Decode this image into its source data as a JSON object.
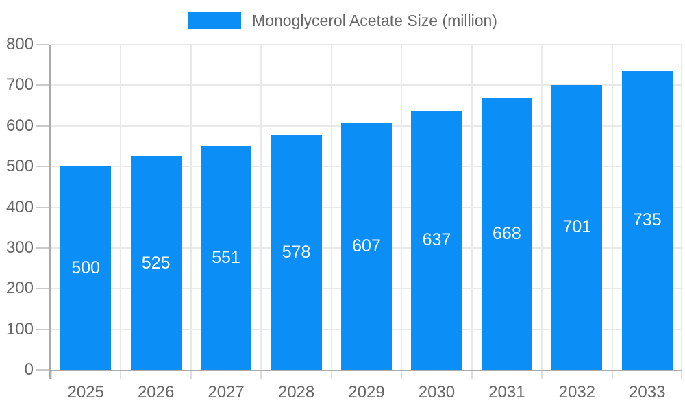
{
  "legend": {
    "label": "Monoglycerol Acetate Size (million)"
  },
  "colors": {
    "bar": "#0b8ef6",
    "bar_label": "#ffffff",
    "axis_label": "#666666",
    "legend_label": "#666666",
    "grid": "#e9e9e9",
    "axis_line": "#ababab",
    "tick": "#c9c9c9",
    "x_tick": "#dedede",
    "background": "#ffffff"
  },
  "chart_data": {
    "type": "bar",
    "title": "Monoglycerol Acetate Size (million)",
    "categories": [
      "2025",
      "2026",
      "2027",
      "2028",
      "2029",
      "2030",
      "2031",
      "2032",
      "2033"
    ],
    "values": [
      500,
      525,
      551,
      578,
      607,
      637,
      668,
      701,
      735
    ],
    "xlabel": "",
    "ylabel": "",
    "ylim": [
      0,
      800
    ],
    "ytick_step": 100,
    "yticks": [
      0,
      100,
      200,
      300,
      400,
      500,
      600,
      700,
      800
    ],
    "grid": true,
    "legend_position": "top",
    "bar_value_labels": "inside-center"
  }
}
